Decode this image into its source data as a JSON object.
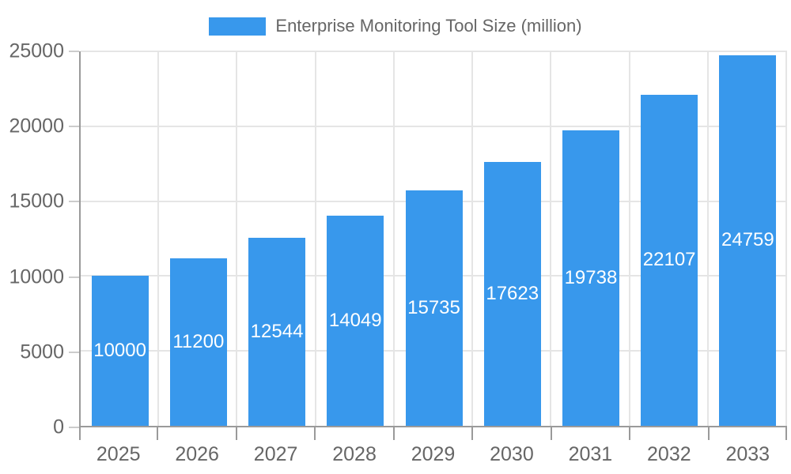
{
  "chart_data": {
    "type": "bar",
    "title": "",
    "legend": {
      "label": "Enterprise Monitoring Tool Size (million)",
      "position": "top"
    },
    "categories": [
      "2025",
      "2026",
      "2027",
      "2028",
      "2029",
      "2030",
      "2031",
      "2032",
      "2033"
    ],
    "series": [
      {
        "name": "Enterprise Monitoring Tool Size (million)",
        "values": [
          10000,
          11200,
          12544,
          14049,
          15735,
          17623,
          19738,
          22107,
          24759
        ]
      }
    ],
    "value_labels": [
      "10000",
      "11200",
      "12544",
      "14049",
      "15735",
      "17623",
      "19738",
      "22107",
      "24759"
    ],
    "xlabel": "",
    "ylabel": "",
    "ylim": [
      0,
      25000
    ],
    "y_ticks": [
      0,
      5000,
      10000,
      15000,
      20000,
      25000
    ],
    "grid": true,
    "legend_swatch_color": "#3898EC",
    "bar_color": "#3898EC",
    "value_label_color": "#FFFFFF",
    "grid_color": "#E5E5E5",
    "axis_color": "#9A9A9A",
    "tick_label_color": "#666666"
  }
}
